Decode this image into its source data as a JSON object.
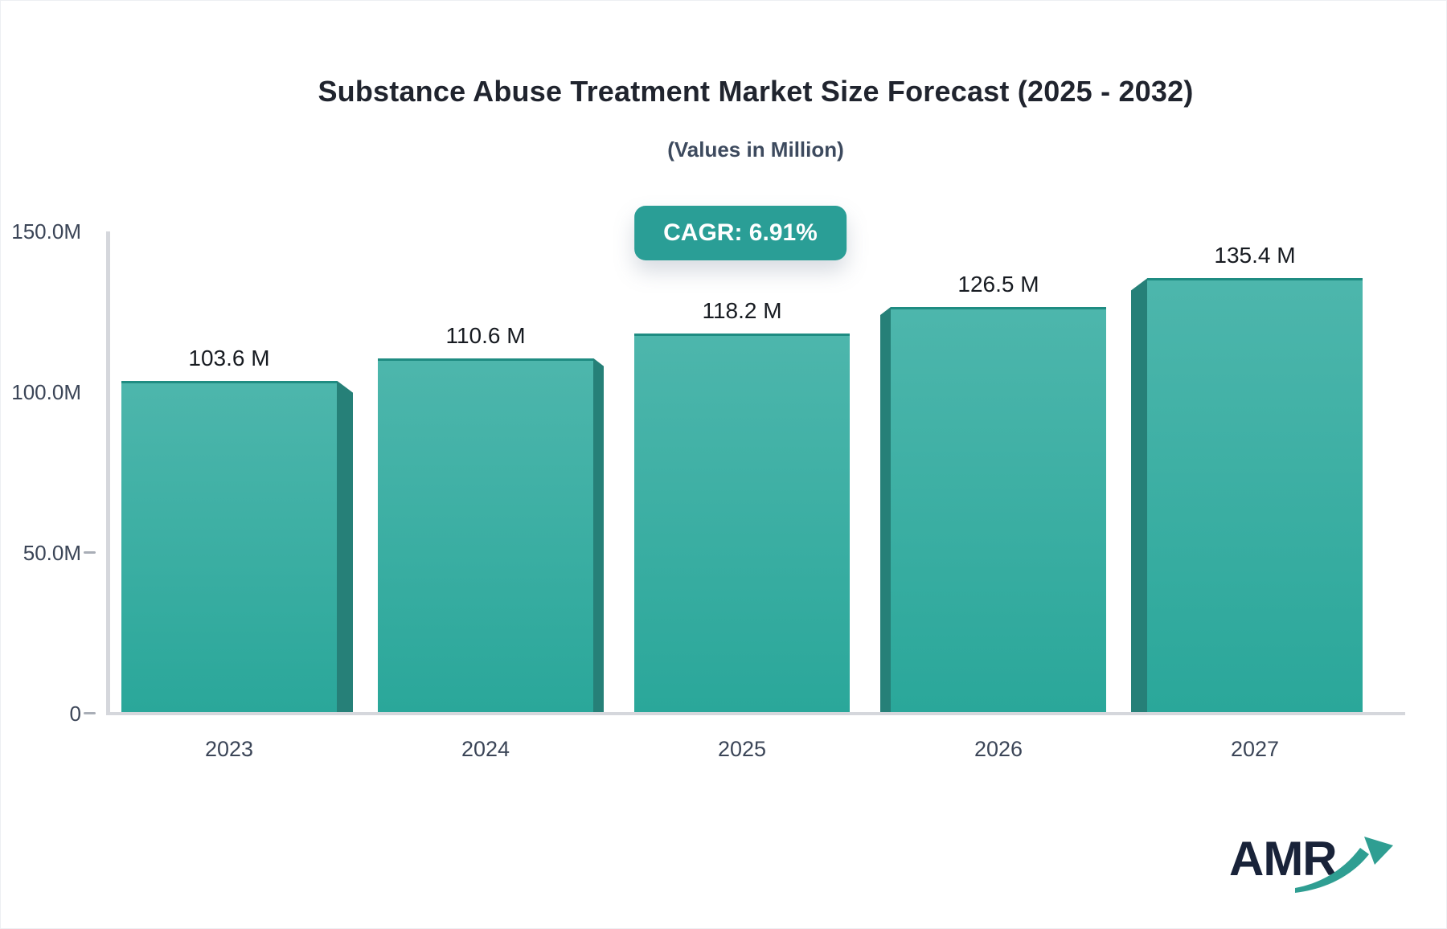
{
  "title": "Substance Abuse Treatment Market Size Forecast (2025 - 2032)",
  "subtitle": "(Values in Million)",
  "cagr_badge": "CAGR: 6.91%",
  "logo": {
    "text": "AMR"
  },
  "colors": {
    "bar_face_top": "#4db6ac",
    "bar_face_bottom": "#2aa79a",
    "bar_top_edge": "#1f8c82",
    "bar_side_face": "#268078",
    "badge_background": "#2a9e96",
    "axis_line": "#d5d7dc",
    "axis_text": "#3b4557",
    "value_text": "#171b21",
    "title_text": "#20242e",
    "logo_navy": "#192339",
    "logo_teal": "#2f9e92"
  },
  "chart_data": {
    "type": "bar",
    "title": "Substance Abuse Treatment Market Size Forecast (2025 - 2032)",
    "subtitle": "(Values in Million)",
    "categories": [
      "2023",
      "2024",
      "2025",
      "2026",
      "2027"
    ],
    "values": [
      103.6,
      110.6,
      118.2,
      126.5,
      135.4
    ],
    "bar_labels": [
      "103.6 M",
      "110.6 M",
      "118.2 M",
      "126.5 M",
      "135.4 M"
    ],
    "annotation": "CAGR: 6.91%",
    "xlabel": "",
    "ylabel": "",
    "ylim": [
      0,
      150
    ],
    "grid": false,
    "legend": false,
    "y_ticks": [
      {
        "label": "150.0M",
        "value": 150,
        "dash": false
      },
      {
        "label": "100.0M",
        "value": 100,
        "dash": false
      },
      {
        "label": "50.0M",
        "value": 50,
        "dash": true
      },
      {
        "label": "0",
        "value": 0,
        "dash": true
      }
    ]
  }
}
